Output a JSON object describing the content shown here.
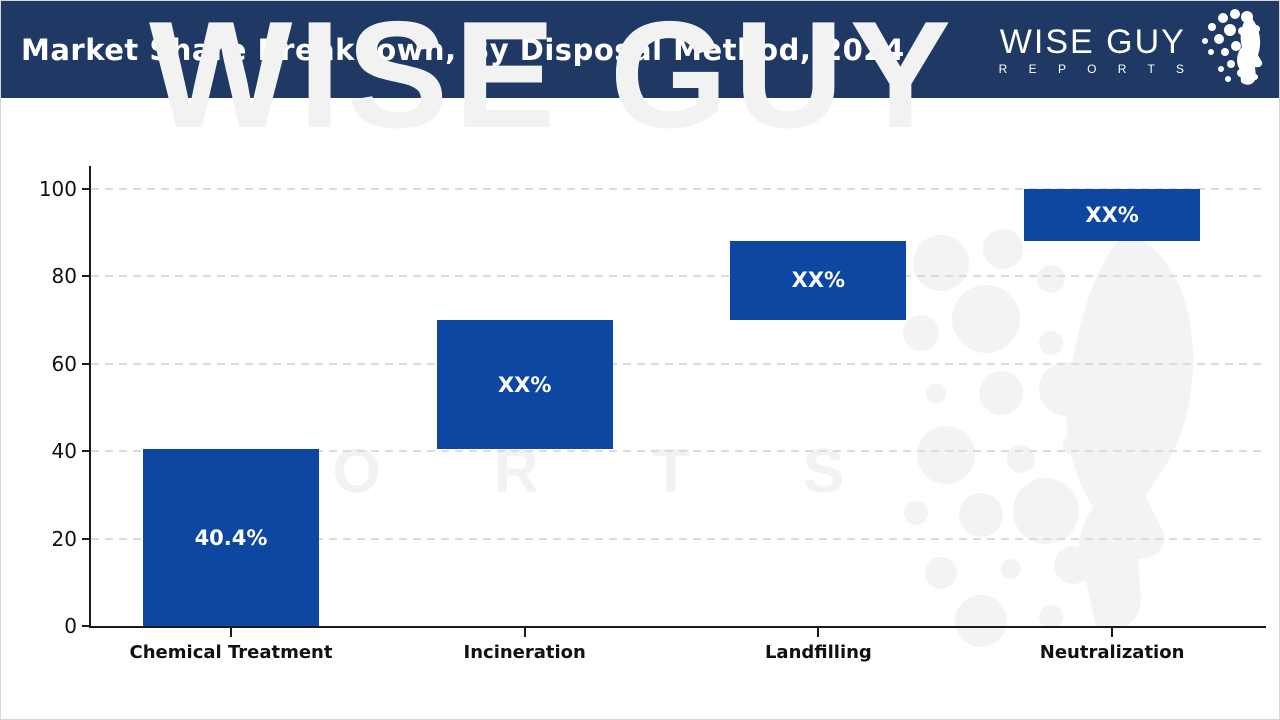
{
  "header": {
    "title": "Market Share Breakdown, By Disposal Method, 2024",
    "bg_color": "#1f3864",
    "logo": {
      "line1": "WISE GUY",
      "line2": "R E P O R T S"
    }
  },
  "watermark": {
    "line1": "WISE GUY",
    "line2": "P O R T S"
  },
  "chart_data": {
    "type": "bar",
    "subtype": "waterfall",
    "title": "Market Share Breakdown, By Disposal Method, 2024",
    "categories": [
      "Chemical Treatment",
      "Incineration",
      "Landfilling",
      "Neutralization"
    ],
    "segments": [
      {
        "category": "Chemical Treatment",
        "start": 0,
        "end": 40.4,
        "label": "40.4%"
      },
      {
        "category": "Incineration",
        "start": 40.4,
        "end": 70,
        "label": "XX%"
      },
      {
        "category": "Landfilling",
        "start": 70,
        "end": 88,
        "label": "XX%"
      },
      {
        "category": "Neutralization",
        "start": 88,
        "end": 100,
        "label": "XX%"
      }
    ],
    "yticks": [
      0,
      20,
      40,
      60,
      80,
      100
    ],
    "ylim": [
      0,
      105
    ],
    "xlabel": "",
    "ylabel": "",
    "grid": "horizontal-dashed",
    "legend": "none",
    "bar_color": "#0d47a1",
    "bar_label_color": "#ffffff",
    "axis_color": "#1a1a1a"
  }
}
